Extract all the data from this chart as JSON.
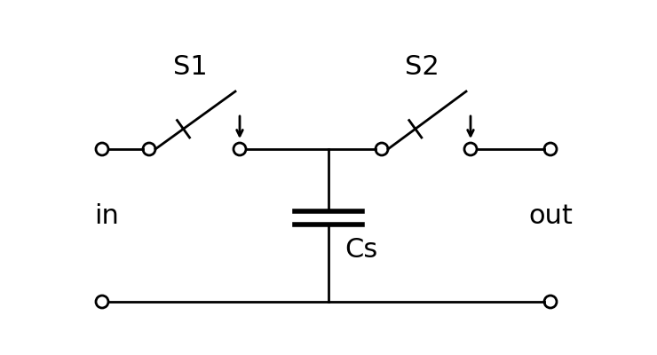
{
  "bg_color": "#ffffff",
  "line_color": "#000000",
  "line_width": 2.0,
  "s1_label": "S1",
  "s2_label": "S2",
  "in_label": "in",
  "out_label": "out",
  "cs_label": "Cs",
  "label_fontsize": 22
}
